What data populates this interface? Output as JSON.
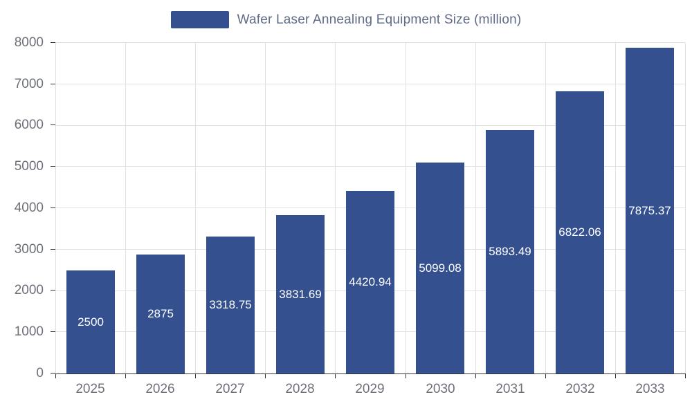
{
  "legend": {
    "label": "Wafer Laser Annealing Equipment Size (million)"
  },
  "colors": {
    "bar": "#34508F",
    "grid": "#E0E0E0",
    "axis": "#333333",
    "axis_label": "#6E7079",
    "legend_text": "#5F6B87",
    "bar_label_text": "#FFFFFF",
    "background": "#FFFFFF"
  },
  "chart_data": {
    "type": "bar",
    "title": "Wafer Laser Annealing Equipment Size (million)",
    "categories": [
      "2025",
      "2026",
      "2027",
      "2028",
      "2029",
      "2030",
      "2031",
      "2032",
      "2033"
    ],
    "values": [
      2500,
      2875,
      3318.75,
      3831.69,
      4420.94,
      5099.08,
      5893.49,
      6822.06,
      7875.37
    ],
    "value_labels": [
      "2500",
      "2875",
      "3318.75",
      "3831.69",
      "4420.94",
      "5099.08",
      "5893.49",
      "6822.06",
      "7875.37"
    ],
    "xlabel": "",
    "ylabel": "",
    "ylim": [
      0,
      8000
    ],
    "yticks": [
      0,
      1000,
      2000,
      3000,
      4000,
      5000,
      6000,
      7000,
      8000
    ],
    "grid": true,
    "legend_position": "top",
    "label_position": "inside-center"
  }
}
